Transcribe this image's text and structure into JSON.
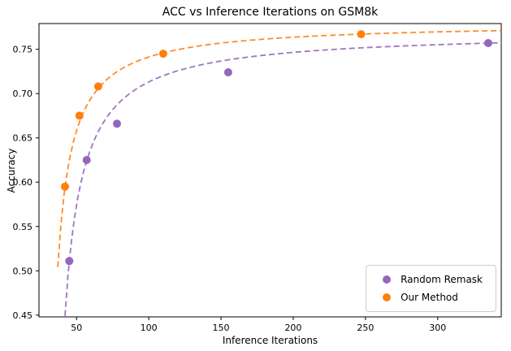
{
  "chart_data": {
    "type": "scatter",
    "title": "ACC vs Inference Iterations on GSM8k",
    "xlabel": "Inference Iterations",
    "ylabel": "Accuracy",
    "xlim": [
      24,
      344
    ],
    "ylim": [
      0.448,
      0.779
    ],
    "xticks": [
      50,
      100,
      150,
      200,
      250,
      300
    ],
    "yticks": [
      0.45,
      0.5,
      0.55,
      0.6,
      0.65,
      0.7,
      0.75
    ],
    "grid": false,
    "legend_position": "lower right",
    "series": [
      {
        "name": "Random Remask",
        "color": "#9467bd",
        "marker": "circle",
        "line_style": "dashed",
        "points": [
          [
            45,
            0.511
          ],
          [
            57,
            0.625
          ],
          [
            78,
            0.666
          ],
          [
            155,
            0.724
          ],
          [
            335,
            0.757
          ]
        ],
        "trend_fit": {
          "form": "y = a - b/(x - c)",
          "a": 0.77,
          "b": 4.01,
          "c": 29.5,
          "x_start": 42,
          "x_end": 344
        }
      },
      {
        "name": "Our Method",
        "color": "#ff7f0e",
        "marker": "circle",
        "line_style": "dashed",
        "points": [
          [
            42,
            0.595
          ],
          [
            52,
            0.675
          ],
          [
            65,
            0.708
          ],
          [
            110,
            0.745
          ],
          [
            247,
            0.767
          ]
        ],
        "trend_fit": {
          "form": "y = a - b/(x - c)",
          "a": 0.78,
          "b": 2.84,
          "c": 26.7,
          "x_start": 37,
          "x_end": 344
        }
      }
    ]
  }
}
